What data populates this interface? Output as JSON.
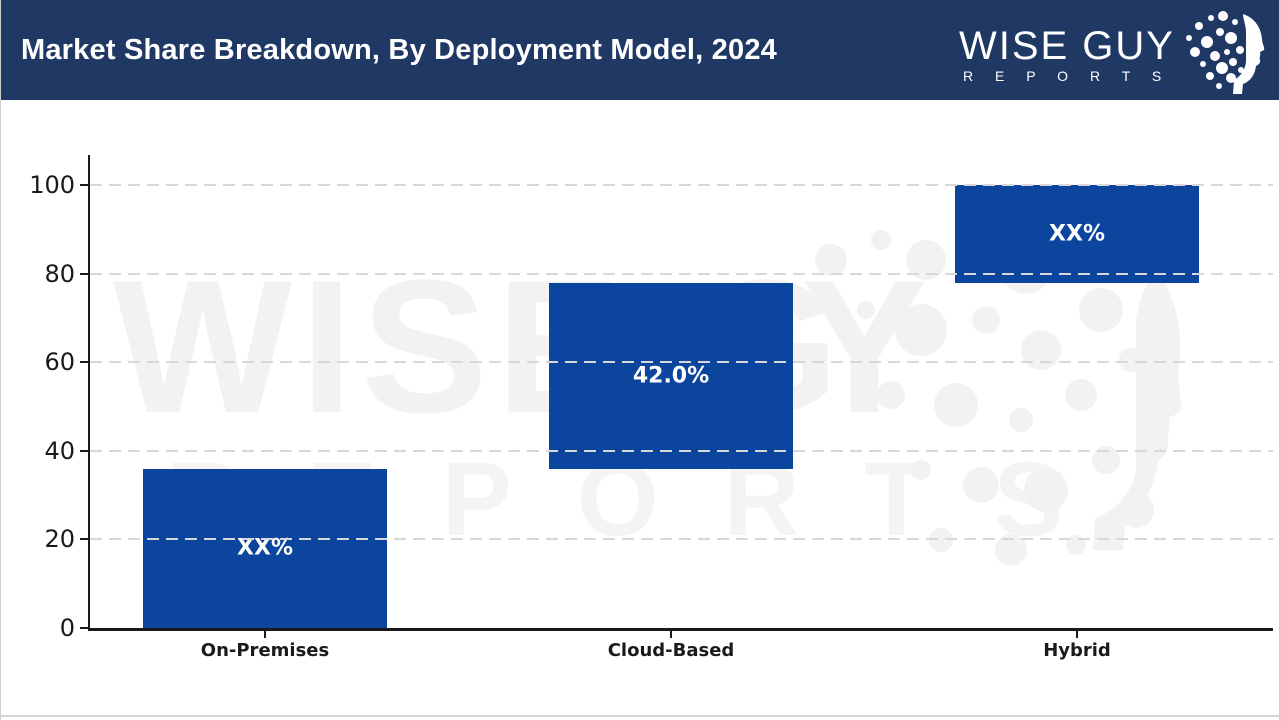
{
  "header": {
    "title": "Market Share Breakdown, By Deployment Model, 2024",
    "logo": {
      "line1": "WISE GUY",
      "line2": "R E P O R T S"
    }
  },
  "watermark": {
    "line1": "WISE G",
    "line1b": "Y",
    "line2": "REPORTS"
  },
  "chart_data": {
    "type": "bar",
    "subtype": "waterfall-floating-bars",
    "title": "Market Share Breakdown, By Deployment Model, 2024",
    "categories": [
      "On-Premises",
      "Cloud-Based",
      "Hybrid"
    ],
    "bars": [
      {
        "category": "On-Premises",
        "start": 0,
        "end": 36,
        "value_label": "XX%"
      },
      {
        "category": "Cloud-Based",
        "start": 36,
        "end": 78,
        "value_label": "42.0%"
      },
      {
        "category": "Hybrid",
        "start": 78,
        "end": 100,
        "value_label": "XX%"
      }
    ],
    "yticks": [
      0,
      20,
      40,
      60,
      80,
      100
    ],
    "ylim": [
      0,
      105
    ],
    "xlabel": "",
    "ylabel": "",
    "grid": "horizontal-dashed",
    "legend": "none",
    "bar_color": "#0b459e",
    "grid_color": "#d8d8d8",
    "axis_color": "#1a1a1a",
    "header_color": "#1f3864",
    "label_text_color": "#ffffff"
  }
}
